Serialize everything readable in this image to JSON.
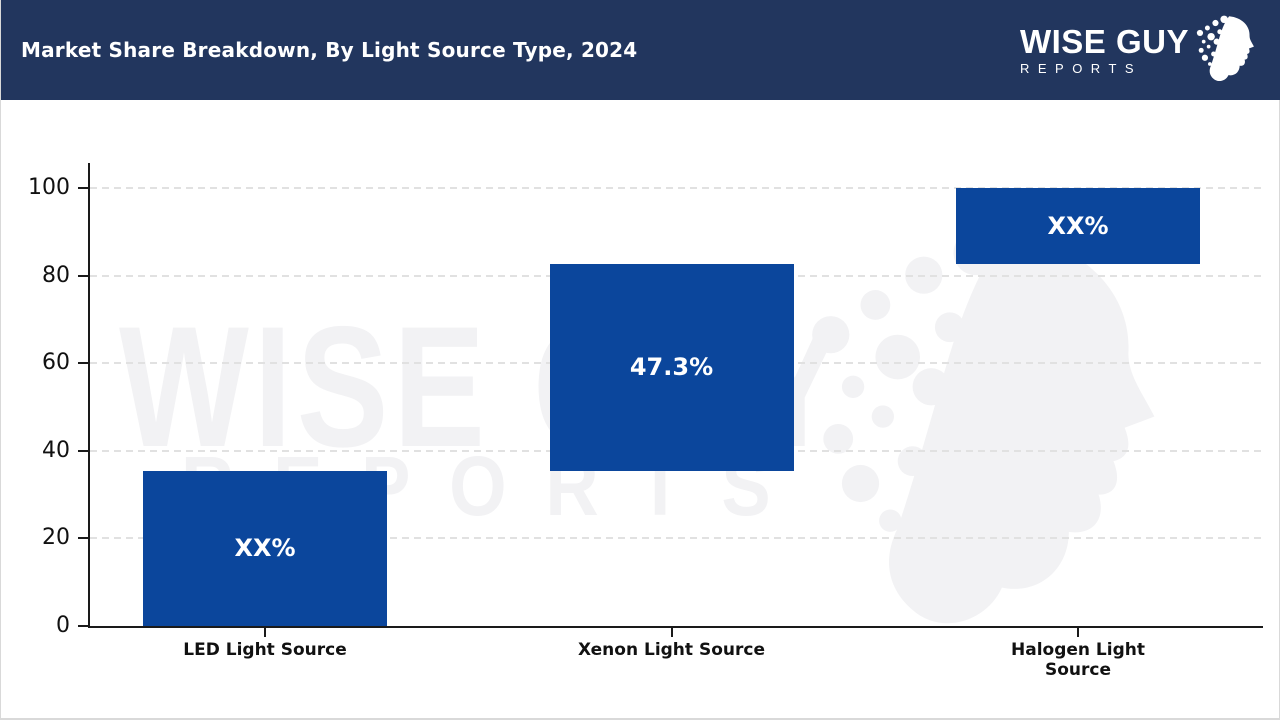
{
  "header": {
    "title": "Market Share Breakdown, By Light Source Type, 2024",
    "logo": {
      "line1": "WISE GUY",
      "line2": "REPORTS"
    }
  },
  "watermark": {
    "line1": "WISE GUY",
    "line2": "REPORTS"
  },
  "colors": {
    "header_bg": "#22365E",
    "bar": "#0B469C",
    "grid": "#e1e1e1",
    "axis": "#1a1a1a",
    "bar_label_text": "#ffffff",
    "watermark": "#f2f2f4"
  },
  "chart_data": {
    "type": "bar",
    "subtype": "stacked-waterfall-segments",
    "title": "Market Share Breakdown, By Light Source Type, 2024",
    "categories": [
      "LED Light Source",
      "Xenon Light Source",
      "Halogen Light Source"
    ],
    "bars": [
      {
        "category": "LED Light Source",
        "from": 0,
        "to": 35.4,
        "label": "XX%"
      },
      {
        "category": "Xenon Light Source",
        "from": 35.4,
        "to": 82.7,
        "label": "47.3%"
      },
      {
        "category": "Halogen Light Source",
        "from": 82.7,
        "to": 100,
        "label": "XX%"
      }
    ],
    "xlabel": "",
    "ylabel": "",
    "yticks": [
      0,
      20,
      40,
      60,
      80,
      100
    ],
    "ylim": [
      0,
      105
    ],
    "grid": "horizontal-dashed",
    "legend": "none",
    "bar_color": "#0B469C"
  }
}
